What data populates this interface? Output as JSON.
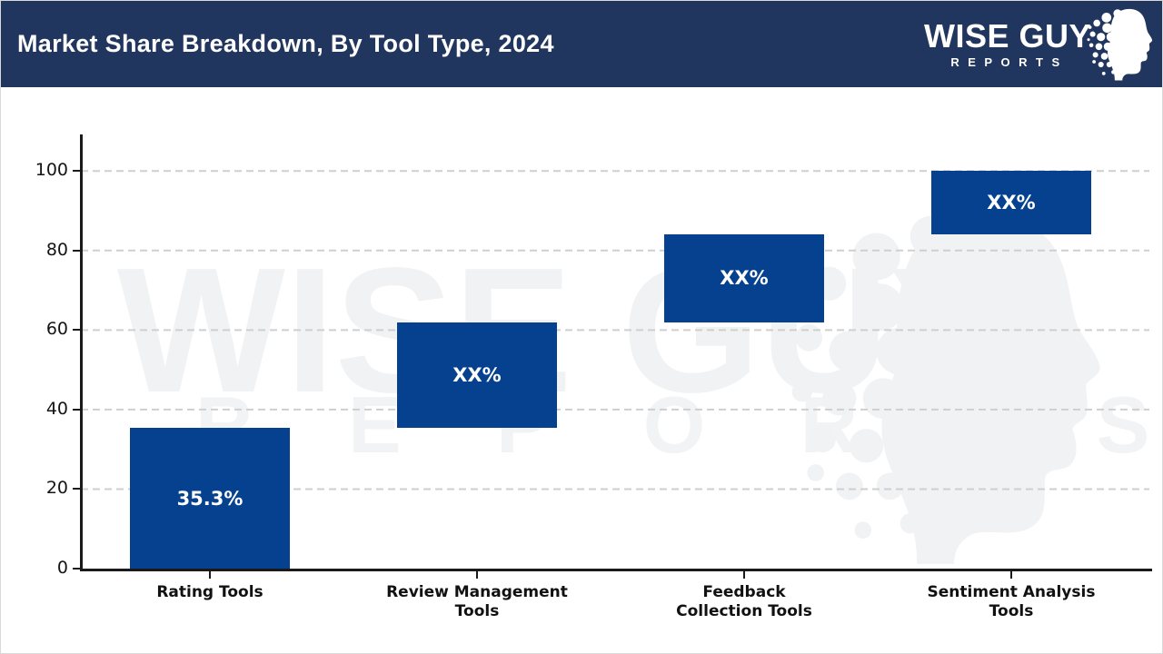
{
  "header": {
    "title": "Market Share Breakdown, By Tool Type, 2024",
    "bg_color": "#21365e",
    "logo": {
      "line1": "WISE GUY",
      "line2": "REPORTS"
    }
  },
  "watermark": {
    "line1": "WISE GUY",
    "line2": "R E P O R T S"
  },
  "chart_data": {
    "type": "bar",
    "subtype": "waterfall",
    "title": "Market Share Breakdown, By Tool Type, 2024",
    "categories": [
      "Rating Tools",
      "Review Management\nTools",
      "Feedback\nCollection Tools",
      "Sentiment Analysis\nTools"
    ],
    "segments": [
      {
        "category": "Rating Tools",
        "start": 0,
        "end": 35.3,
        "label": "35.3%"
      },
      {
        "category": "Review Management Tools",
        "start": 35.3,
        "end": 62,
        "label": "XX%"
      },
      {
        "category": "Feedback Collection Tools",
        "start": 62,
        "end": 84,
        "label": "XX%"
      },
      {
        "category": "Sentiment Analysis Tools",
        "start": 84,
        "end": 100,
        "label": "XX%"
      }
    ],
    "yticks": [
      0,
      20,
      40,
      60,
      80,
      100
    ],
    "ylim": [
      0,
      108.5
    ],
    "xlabel": "",
    "ylabel": "",
    "grid": "dashed-horizontal",
    "legend": "none",
    "bar_color": "#05418f",
    "bar_label_color": "#ffffff",
    "grid_color": "#cfcfcf",
    "axis_color": "#1a1a1a"
  }
}
